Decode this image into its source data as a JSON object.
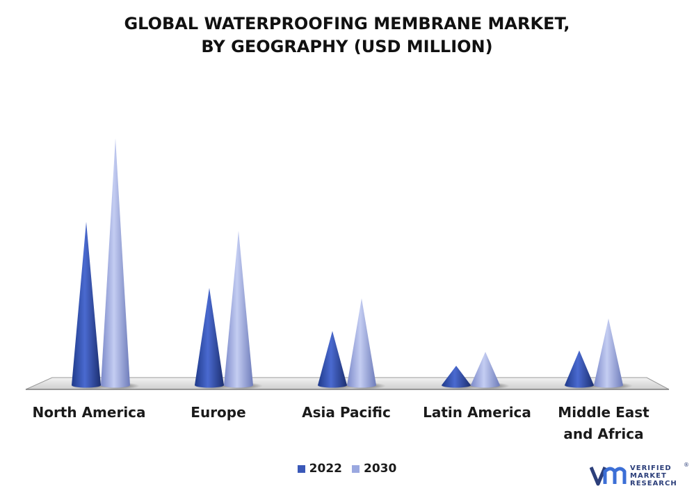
{
  "title_lines": [
    "GLOBAL WATERPROOFING MEMBRANE MARKET,",
    "BY GEOGRAPHY (USD MILLION)"
  ],
  "colors": {
    "2022": "#3a58b8",
    "2030": "#9aa8e0"
  },
  "legend": [
    {
      "label": "2022",
      "color": "#3a58b8"
    },
    {
      "label": "2030",
      "color": "#9aa8e0"
    }
  ],
  "logo": {
    "line1": "VERIFIED",
    "line2": "MARKET",
    "line3": "RESEARCH",
    "reg": "®"
  },
  "chart_data": {
    "type": "bar",
    "style": "3d-cone",
    "categories": [
      "North America",
      "Europe",
      "Asia Pacific",
      "Latin America",
      "Middle East and Africa"
    ],
    "category_labels": [
      "North America",
      "Europe",
      "Asia Pacific",
      "Latin America",
      "Middle East\nand Africa"
    ],
    "series": [
      {
        "name": "2022",
        "values": [
          235,
          140,
          78,
          28,
          50
        ]
      },
      {
        "name": "2030",
        "values": [
          355,
          222,
          125,
          48,
          96
        ]
      }
    ],
    "ylim": [
      0,
      360
    ],
    "grid": false,
    "legend_position": "bottom"
  }
}
